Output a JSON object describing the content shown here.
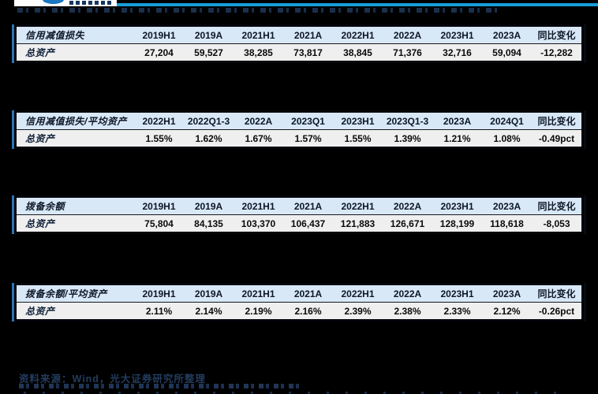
{
  "colors": {
    "page_background": "#000000",
    "left_accent_blue": "#2e74b5",
    "header_bar_cyan": "#189cd9",
    "table_header_bg": "#d9e8f6",
    "table_row_bg": "#efefef"
  },
  "tables": [
    {
      "label": "信用减值损失",
      "columns": [
        "2019H1",
        "2019A",
        "2021H1",
        "2021A",
        "2022H1",
        "2022A",
        "2023H1",
        "2023A",
        "同比变化"
      ],
      "row_label": "总资产",
      "values": [
        "27,204",
        "59,527",
        "38,285",
        "73,817",
        "38,845",
        "71,376",
        "32,716",
        "59,094",
        "-12,282"
      ]
    },
    {
      "label": "信用减值损失/平均资产",
      "columns": [
        "2022H1",
        "2022Q1-3",
        "2022A",
        "2023Q1",
        "2023H1",
        "2023Q1-3",
        "2023A",
        "2024Q1",
        "同比变化"
      ],
      "row_label": "总资产",
      "values": [
        "1.55%",
        "1.62%",
        "1.67%",
        "1.57%",
        "1.55%",
        "1.39%",
        "1.21%",
        "1.08%",
        "-0.49pct"
      ]
    },
    {
      "label": "拨备余额",
      "columns": [
        "2019H1",
        "2019A",
        "2021H1",
        "2021A",
        "2022H1",
        "2022A",
        "2023H1",
        "2023A",
        "同比变化"
      ],
      "row_label": "总资产",
      "values": [
        "75,804",
        "84,135",
        "103,370",
        "106,437",
        "121,883",
        "126,671",
        "128,199",
        "118,618",
        "-8,053"
      ]
    },
    {
      "label": "拨备余额/平均资产",
      "columns": [
        "2019H1",
        "2019A",
        "2021H1",
        "2021A",
        "2022H1",
        "2022A",
        "2023H1",
        "2023A",
        "同比变化"
      ],
      "row_label": "总资产",
      "values": [
        "2.11%",
        "2.14%",
        "2.19%",
        "2.16%",
        "2.39%",
        "2.38%",
        "2.33%",
        "2.12%",
        "-0.26pct"
      ]
    }
  ],
  "footer": {
    "source_text": "资料来源：Wind，光大证券研究所整理"
  }
}
